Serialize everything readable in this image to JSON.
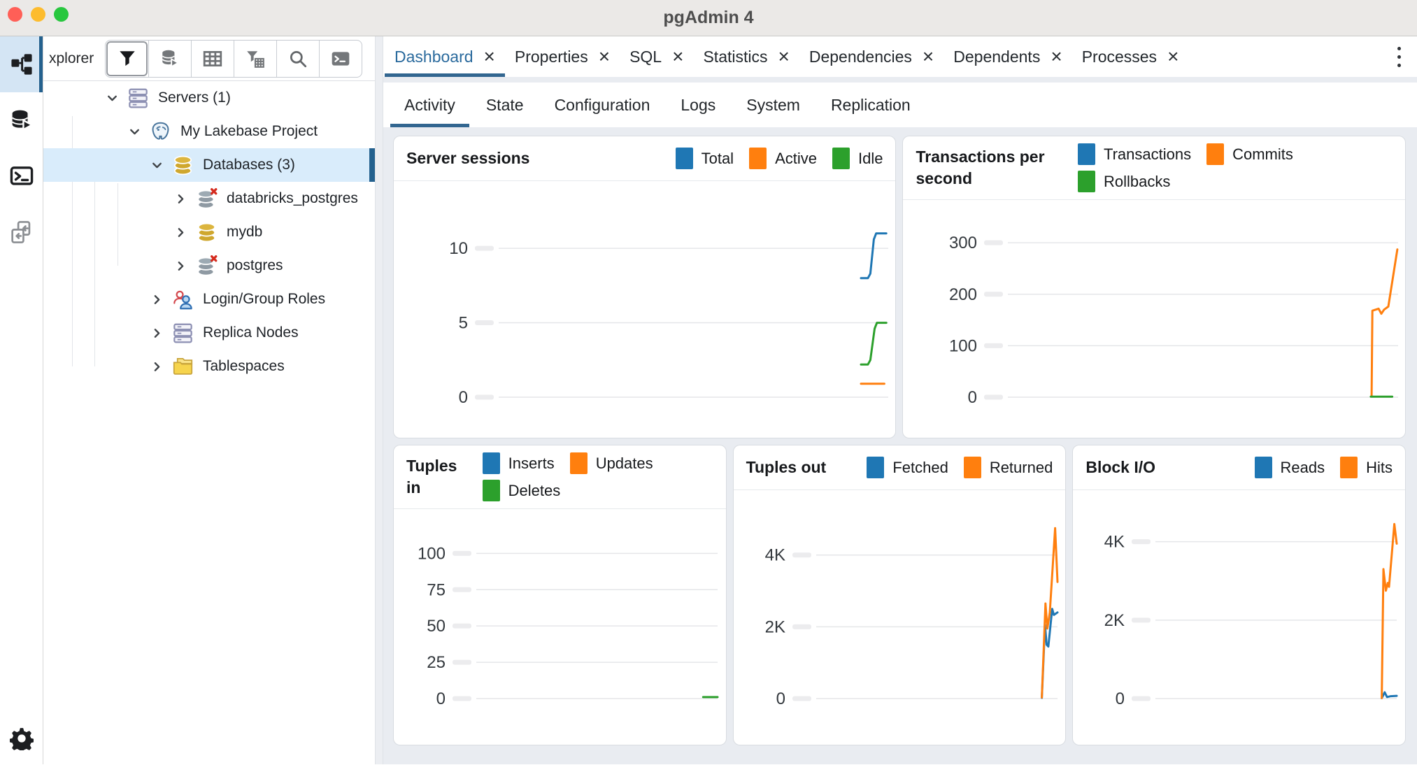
{
  "window": {
    "title": "pgAdmin 4"
  },
  "colors": {
    "accent": "#326690",
    "tab_active_text": "#2a6a9d",
    "selection_bg": "#d9ecfb",
    "selection_bar": "#24618e",
    "content_bg": "#e9ecf1",
    "series_blue": "#1f77b4",
    "series_orange": "#ff7f0e",
    "series_green": "#2ca02c",
    "traffic_red": "#ff5f57",
    "traffic_yellow": "#fdbc2e",
    "traffic_green": "#28c73f"
  },
  "activity_bar": {
    "items": [
      {
        "name": "object-explorer",
        "icon": "sitemap-icon",
        "active": true
      },
      {
        "name": "query-tool",
        "icon": "query-tool-icon",
        "active": false
      },
      {
        "name": "psql-terminal",
        "icon": "terminal-icon",
        "active": false
      },
      {
        "name": "schema-diff",
        "icon": "schema-diff-icon",
        "active": false
      }
    ],
    "bottom_item": {
      "name": "settings",
      "icon": "gear-icon"
    }
  },
  "explorer": {
    "header": "xplorer",
    "toolbar": [
      {
        "name": "filter",
        "icon": "filter-icon",
        "focused": true
      },
      {
        "name": "view-data",
        "icon": "database-play-icon",
        "focused": false
      },
      {
        "name": "view-table",
        "icon": "grid-icon",
        "focused": false
      },
      {
        "name": "filtered-rows",
        "icon": "filter-table-icon",
        "focused": false
      },
      {
        "name": "search-objects",
        "icon": "search-icon",
        "focused": false
      },
      {
        "name": "psql-tool",
        "icon": "console-icon",
        "focused": false
      }
    ],
    "tree": [
      {
        "label": "Servers (1)",
        "slug": "servers",
        "level": 0,
        "expander": "down",
        "icon": "server-stack",
        "selected": false
      },
      {
        "label": "My Lakebase Project",
        "slug": "my-lakebase-project",
        "level": 1,
        "expander": "down",
        "icon": "elephant",
        "selected": false
      },
      {
        "label": "Databases (3)",
        "slug": "databases",
        "level": 2,
        "expander": "down",
        "icon": "db-gold",
        "selected": true
      },
      {
        "label": "databricks_postgres",
        "slug": "databricks-postgres",
        "level": 3,
        "expander": "right",
        "icon": "db-gray-x",
        "selected": false
      },
      {
        "label": "mydb",
        "slug": "mydb",
        "level": 3,
        "expander": "right",
        "icon": "db-gold",
        "selected": false
      },
      {
        "label": "postgres",
        "slug": "postgres",
        "level": 3,
        "expander": "right",
        "icon": "db-gray-x",
        "selected": false
      },
      {
        "label": "Login/Group Roles",
        "slug": "login-group-roles",
        "level": 2,
        "expander": "right",
        "icon": "roles",
        "selected": false
      },
      {
        "label": "Replica Nodes",
        "slug": "replica-nodes",
        "level": 2,
        "expander": "right",
        "icon": "server-stack",
        "selected": false
      },
      {
        "label": "Tablespaces",
        "slug": "tablespaces",
        "level": 2,
        "expander": "right",
        "icon": "folder",
        "selected": false
      }
    ]
  },
  "tabs": {
    "close_glyph": "×",
    "items": [
      {
        "label": "Dashboard",
        "active": true
      },
      {
        "label": "Properties",
        "active": false
      },
      {
        "label": "SQL",
        "active": false
      },
      {
        "label": "Statistics",
        "active": false
      },
      {
        "label": "Dependencies",
        "active": false
      },
      {
        "label": "Dependents",
        "active": false
      },
      {
        "label": "Processes",
        "active": false
      }
    ]
  },
  "subtabs": {
    "active_index": 0,
    "items": [
      "Activity",
      "State",
      "Configuration",
      "Logs",
      "System",
      "Replication"
    ]
  },
  "chart_data": [
    {
      "type": "line",
      "title": "Server sessions",
      "size": "large",
      "legend_position": "header-right",
      "grid": true,
      "ylim": [
        0,
        13.2
      ],
      "yticks": [
        {
          "v": 0,
          "label": "0"
        },
        {
          "v": 5,
          "label": "5"
        },
        {
          "v": 10,
          "label": "10"
        }
      ],
      "series": [
        {
          "name": "Total",
          "color": "#1f77b4",
          "points": [
            [
              0.93,
              8
            ],
            [
              0.948,
              8
            ],
            [
              0.954,
              8.3
            ],
            [
              0.963,
              10.6
            ],
            [
              0.969,
              11
            ],
            [
              0.995,
              11
            ]
          ]
        },
        {
          "name": "Active",
          "color": "#ff7f0e",
          "points": [
            [
              0.93,
              0.9
            ],
            [
              0.99,
              0.9
            ]
          ]
        },
        {
          "name": "Idle",
          "color": "#2ca02c",
          "points": [
            [
              0.93,
              2.2
            ],
            [
              0.948,
              2.2
            ],
            [
              0.954,
              2.5
            ],
            [
              0.965,
              4.6
            ],
            [
              0.971,
              5
            ],
            [
              0.995,
              5
            ]
          ]
        }
      ]
    },
    {
      "type": "line",
      "title": "Transactions per second",
      "size": "large",
      "legend_position": "header-right",
      "grid": true,
      "ylim": [
        0,
        345
      ],
      "yticks": [
        {
          "v": 0,
          "label": "0"
        },
        {
          "v": 100,
          "label": "100"
        },
        {
          "v": 200,
          "label": "200"
        },
        {
          "v": 300,
          "label": "300"
        }
      ],
      "series": [
        {
          "name": "Transactions",
          "color": "#1f77b4",
          "points": []
        },
        {
          "name": "Commits",
          "color": "#ff7f0e",
          "points": [
            [
              0.932,
              2
            ],
            [
              0.934,
              168
            ],
            [
              0.95,
              172
            ],
            [
              0.957,
              162
            ],
            [
              0.964,
              170
            ],
            [
              0.975,
              176
            ],
            [
              0.998,
              287
            ]
          ]
        },
        {
          "name": "Rollbacks",
          "color": "#2ca02c",
          "points": [
            [
              0.93,
              1
            ],
            [
              0.985,
              1
            ]
          ]
        }
      ]
    },
    {
      "type": "line",
      "title": "Tuples in",
      "size": "small",
      "legend_position": "header-right",
      "grid": true,
      "ylim": [
        0,
        118
      ],
      "yticks": [
        {
          "v": 0,
          "label": "0"
        },
        {
          "v": 25,
          "label": "25"
        },
        {
          "v": 50,
          "label": "50"
        },
        {
          "v": 75,
          "label": "75"
        },
        {
          "v": 100,
          "label": "100"
        }
      ],
      "series": [
        {
          "name": "Inserts",
          "color": "#1f77b4",
          "points": []
        },
        {
          "name": "Updates",
          "color": "#ff7f0e",
          "points": []
        },
        {
          "name": "Deletes",
          "color": "#2ca02c",
          "points": [
            [
              0.94,
              1
            ],
            [
              1.0,
              1
            ]
          ]
        }
      ]
    },
    {
      "type": "line",
      "title": "Tuples out",
      "size": "small",
      "legend_position": "header-right",
      "grid": true,
      "ylim": [
        0,
        5300
      ],
      "yticks": [
        {
          "v": 0,
          "label": "0"
        },
        {
          "v": 2000,
          "label": "2K"
        },
        {
          "v": 4000,
          "label": "4K"
        }
      ],
      "series": [
        {
          "name": "Fetched",
          "color": "#1f77b4",
          "points": [
            [
              0.935,
              20
            ],
            [
              0.948,
              2050
            ],
            [
              0.955,
              1500
            ],
            [
              0.962,
              1450
            ],
            [
              0.978,
              2500
            ],
            [
              0.985,
              2330
            ],
            [
              1.0,
              2400
            ]
          ]
        },
        {
          "name": "Returned",
          "color": "#ff7f0e",
          "points": [
            [
              0.935,
              30
            ],
            [
              0.95,
              2650
            ],
            [
              0.958,
              1950
            ],
            [
              0.968,
              2400
            ],
            [
              0.99,
              4750
            ],
            [
              1.0,
              3250
            ]
          ]
        }
      ]
    },
    {
      "type": "line",
      "title": "Block I/O",
      "size": "small",
      "legend_position": "header-right",
      "grid": true,
      "ylim": [
        0,
        4850
      ],
      "yticks": [
        {
          "v": 0,
          "label": "0"
        },
        {
          "v": 2000,
          "label": "2K"
        },
        {
          "v": 4000,
          "label": "4K"
        }
      ],
      "series": [
        {
          "name": "Reads",
          "color": "#1f77b4",
          "points": [
            [
              0.938,
              10
            ],
            [
              0.95,
              160
            ],
            [
              0.96,
              40
            ],
            [
              0.975,
              60
            ],
            [
              1.0,
              70
            ]
          ]
        },
        {
          "name": "Hits",
          "color": "#ff7f0e",
          "points": [
            [
              0.938,
              10
            ],
            [
              0.945,
              3300
            ],
            [
              0.955,
              2750
            ],
            [
              0.963,
              2950
            ],
            [
              0.968,
              2850
            ],
            [
              0.99,
              4450
            ],
            [
              1.0,
              3950
            ]
          ]
        }
      ]
    }
  ]
}
